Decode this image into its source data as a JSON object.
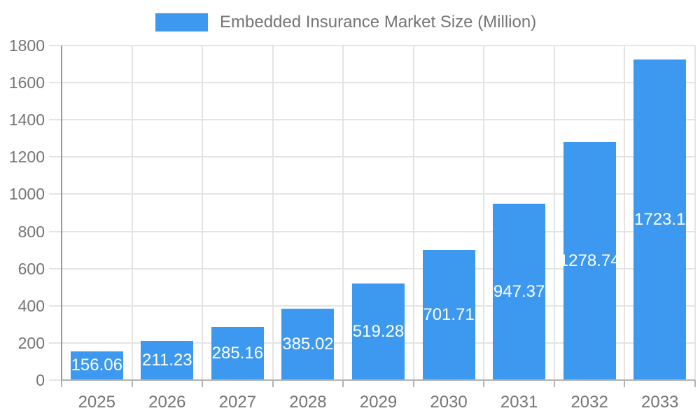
{
  "legend": {
    "label": "Embedded Insurance Market Size (Million)"
  },
  "chart_data": {
    "type": "bar",
    "title": "Embedded Insurance Market Size (Million)",
    "series_name": "Embedded Insurance Market Size (Million)",
    "categories": [
      "2025",
      "2026",
      "2027",
      "2028",
      "2029",
      "2030",
      "2031",
      "2032",
      "2033"
    ],
    "values": [
      156.06,
      211.23,
      285.16,
      385.02,
      519.28,
      701.71,
      947.37,
      1278.74,
      1723.1
    ],
    "bar_labels": [
      "156.06",
      "211.23",
      "285.16",
      "385.02",
      "519.28",
      "701.71",
      "947.37",
      "1278.74",
      "1723.1"
    ],
    "xlabel": "",
    "ylabel": "",
    "ylim": [
      0,
      1800
    ],
    "yticks": [
      0,
      200,
      400,
      600,
      800,
      1000,
      1200,
      1400,
      1600,
      1800
    ],
    "grid": true,
    "legend_position": "top",
    "bar_label_position": "inside-center"
  },
  "colors": {
    "bar": "#3d99f0",
    "bar_label": "#ffffff",
    "axis_text": "#757575",
    "legend_text": "#757575",
    "gridline": "#e4e4e4",
    "x_axis_line": "#b3b3b3",
    "y_axis_line": "#999999",
    "background": "#ffffff"
  }
}
